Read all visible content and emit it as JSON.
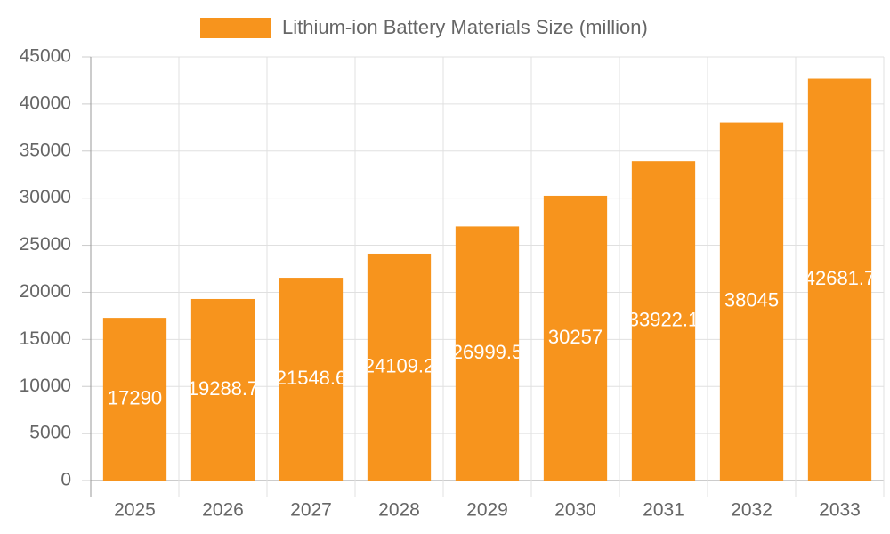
{
  "chart_data": {
    "type": "bar",
    "categories": [
      "2025",
      "2026",
      "2027",
      "2028",
      "2029",
      "2030",
      "2031",
      "2032",
      "2033"
    ],
    "series": [
      {
        "name": "Lithium-ion Battery Materials Size (million)",
        "color": "#f7941d",
        "values": [
          17290,
          19288.7,
          21548.6,
          24109.2,
          26999.5,
          30257,
          33922.1,
          38045,
          42681.7
        ]
      }
    ],
    "ylim": [
      0,
      45000
    ],
    "yticks": [
      0,
      5000,
      10000,
      15000,
      20000,
      25000,
      30000,
      35000,
      40000,
      45000
    ],
    "grid": true,
    "legend": "top"
  }
}
